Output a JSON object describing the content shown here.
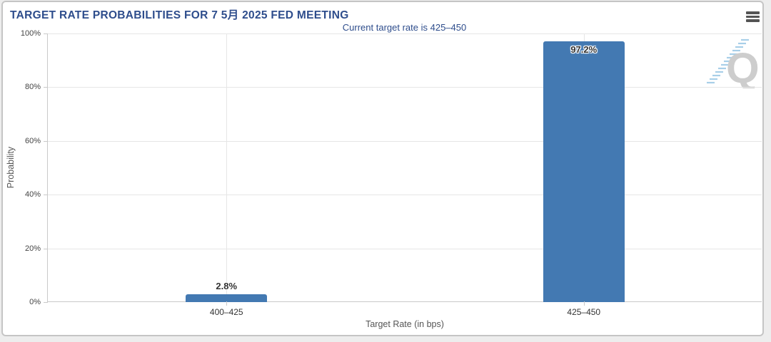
{
  "chart_data": {
    "type": "bar",
    "title": "TARGET RATE PROBABILITIES FOR 7 5月 2025 FED MEETING",
    "subtitle": "Current target rate is 425–450",
    "categories": [
      "400–425",
      "425–450"
    ],
    "values": [
      2.8,
      97.2
    ],
    "data_labels": [
      "2.8%",
      "97.2%"
    ],
    "xlabel": "Target Rate (in bps)",
    "ylabel": "Probability",
    "ylim": [
      0,
      100
    ],
    "ytick_labels": [
      "0%",
      "20%",
      "40%",
      "60%",
      "80%",
      "100%"
    ],
    "grid": true,
    "legend": "none",
    "bar_color": "#4379b2"
  },
  "watermark": {
    "letter": "Q"
  },
  "colors": {
    "title_navy": "#2e4d8c",
    "bar_blue": "#4379b2",
    "gridline": "#e6e6e6",
    "axis_line": "#c9c9c9",
    "tick_text": "#444444",
    "watermark_gray": "#cdcdcd",
    "watermark_dash_blue": "#a8cfe8"
  }
}
